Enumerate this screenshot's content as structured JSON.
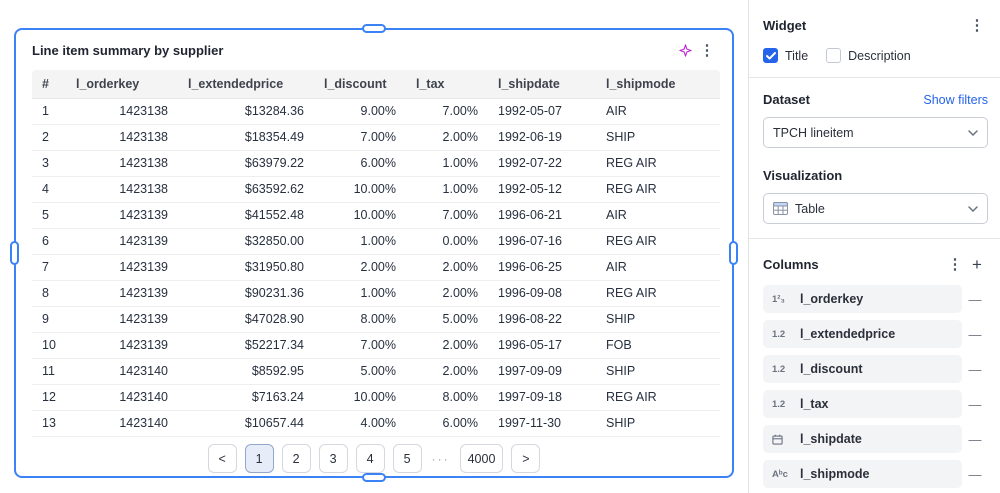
{
  "widget": {
    "title": "Line item summary by supplier",
    "icons": {
      "ai": "sparkle-icon",
      "menu": "kebab-icon"
    },
    "table": {
      "headers": [
        "#",
        "l_orderkey",
        "l_extendedprice",
        "l_discount",
        "l_tax",
        "l_shipdate",
        "l_shipmode"
      ],
      "rows": [
        [
          "1",
          "1423138",
          "$13284.36",
          "9.00%",
          "7.00%",
          "1992-05-07",
          "AIR"
        ],
        [
          "2",
          "1423138",
          "$18354.49",
          "7.00%",
          "2.00%",
          "1992-06-19",
          "SHIP"
        ],
        [
          "3",
          "1423138",
          "$63979.22",
          "6.00%",
          "1.00%",
          "1992-07-22",
          "REG AIR"
        ],
        [
          "4",
          "1423138",
          "$63592.62",
          "10.00%",
          "1.00%",
          "1992-05-12",
          "REG AIR"
        ],
        [
          "5",
          "1423139",
          "$41552.48",
          "10.00%",
          "7.00%",
          "1996-06-21",
          "AIR"
        ],
        [
          "6",
          "1423139",
          "$32850.00",
          "1.00%",
          "0.00%",
          "1996-07-16",
          "REG AIR"
        ],
        [
          "7",
          "1423139",
          "$31950.80",
          "2.00%",
          "2.00%",
          "1996-06-25",
          "AIR"
        ],
        [
          "8",
          "1423139",
          "$90231.36",
          "1.00%",
          "2.00%",
          "1996-09-08",
          "REG AIR"
        ],
        [
          "9",
          "1423139",
          "$47028.90",
          "8.00%",
          "5.00%",
          "1996-08-22",
          "SHIP"
        ],
        [
          "10",
          "1423139",
          "$52217.34",
          "7.00%",
          "2.00%",
          "1996-05-17",
          "FOB"
        ],
        [
          "11",
          "1423140",
          "$8592.95",
          "5.00%",
          "2.00%",
          "1997-09-09",
          "SHIP"
        ],
        [
          "12",
          "1423140",
          "$7163.24",
          "10.00%",
          "8.00%",
          "1997-09-18",
          "REG AIR"
        ],
        [
          "13",
          "1423140",
          "$10657.44",
          "4.00%",
          "6.00%",
          "1997-11-30",
          "SHIP"
        ]
      ]
    },
    "pagination": {
      "prev": "<",
      "pages": [
        "1",
        "2",
        "3",
        "4",
        "5"
      ],
      "active": "1",
      "ellipsis": "···",
      "last_page": "4000",
      "next": ">"
    }
  },
  "panel": {
    "widget_section": {
      "title": "Widget",
      "title_checkbox": {
        "label": "Title",
        "checked": true
      },
      "description_checkbox": {
        "label": "Description",
        "checked": false
      }
    },
    "dataset_section": {
      "title": "Dataset",
      "show_filters": "Show filters",
      "selected": "TPCH lineitem"
    },
    "visualization_section": {
      "title": "Visualization",
      "selected": "Table"
    },
    "columns_section": {
      "title": "Columns",
      "remove_glyph": "—",
      "add_glyph": "+",
      "items": [
        {
          "type": "integer",
          "glyph": "1²₃",
          "label": "l_orderkey"
        },
        {
          "type": "decimal",
          "glyph": "1.2",
          "label": "l_extendedprice"
        },
        {
          "type": "decimal",
          "glyph": "1.2",
          "label": "l_discount"
        },
        {
          "type": "decimal",
          "glyph": "1.2",
          "label": "l_tax"
        },
        {
          "type": "date",
          "glyph": "calendar",
          "label": "l_shipdate"
        },
        {
          "type": "text",
          "glyph": "Aᵇc",
          "label": "l_shipmode"
        }
      ]
    }
  },
  "colors": {
    "selection_blue": "#3b82f6",
    "accent_blue": "#2563eb",
    "sparkle_magenta": "#c026d3",
    "header_gray": "#f4f4f5"
  }
}
